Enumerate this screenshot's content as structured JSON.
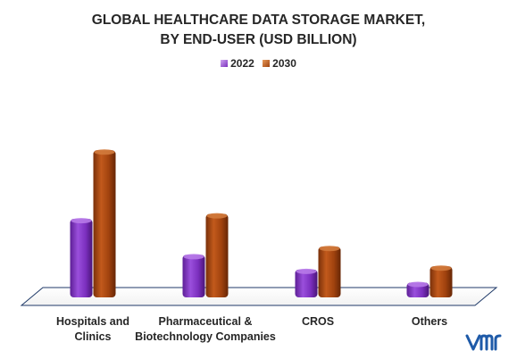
{
  "chart_data": {
    "type": "bar",
    "title": "GLOBAL HEALTHCARE DATA STORAGE MARKET,\nBY END-USER (USD BILLION)",
    "title_lines": [
      "GLOBAL HEALTHCARE DATA STORAGE MARKET,",
      "BY END-USER (USD BILLION)"
    ],
    "categories": [
      [
        "Hospitals and",
        "Clinics"
      ],
      [
        "Pharmaceutical &",
        "Biotechnology Companies"
      ],
      [
        "CROS"
      ],
      [
        "Others"
      ]
    ],
    "series": [
      {
        "name": "2022",
        "color": "#7B2FBE",
        "values": [
          4.8,
          2.6,
          1.7,
          0.9
        ]
      },
      {
        "name": "2030",
        "color": "#A0420E",
        "values": [
          9.0,
          5.1,
          3.1,
          1.9
        ]
      }
    ],
    "ylim": [
      0,
      10
    ],
    "grid": false,
    "legend_position": "top-center",
    "axis_labels_visible": false,
    "three_d": true
  },
  "brand": {
    "logo_icon": "vmr-logo-icon",
    "logo_color": "#1E5AA8"
  }
}
